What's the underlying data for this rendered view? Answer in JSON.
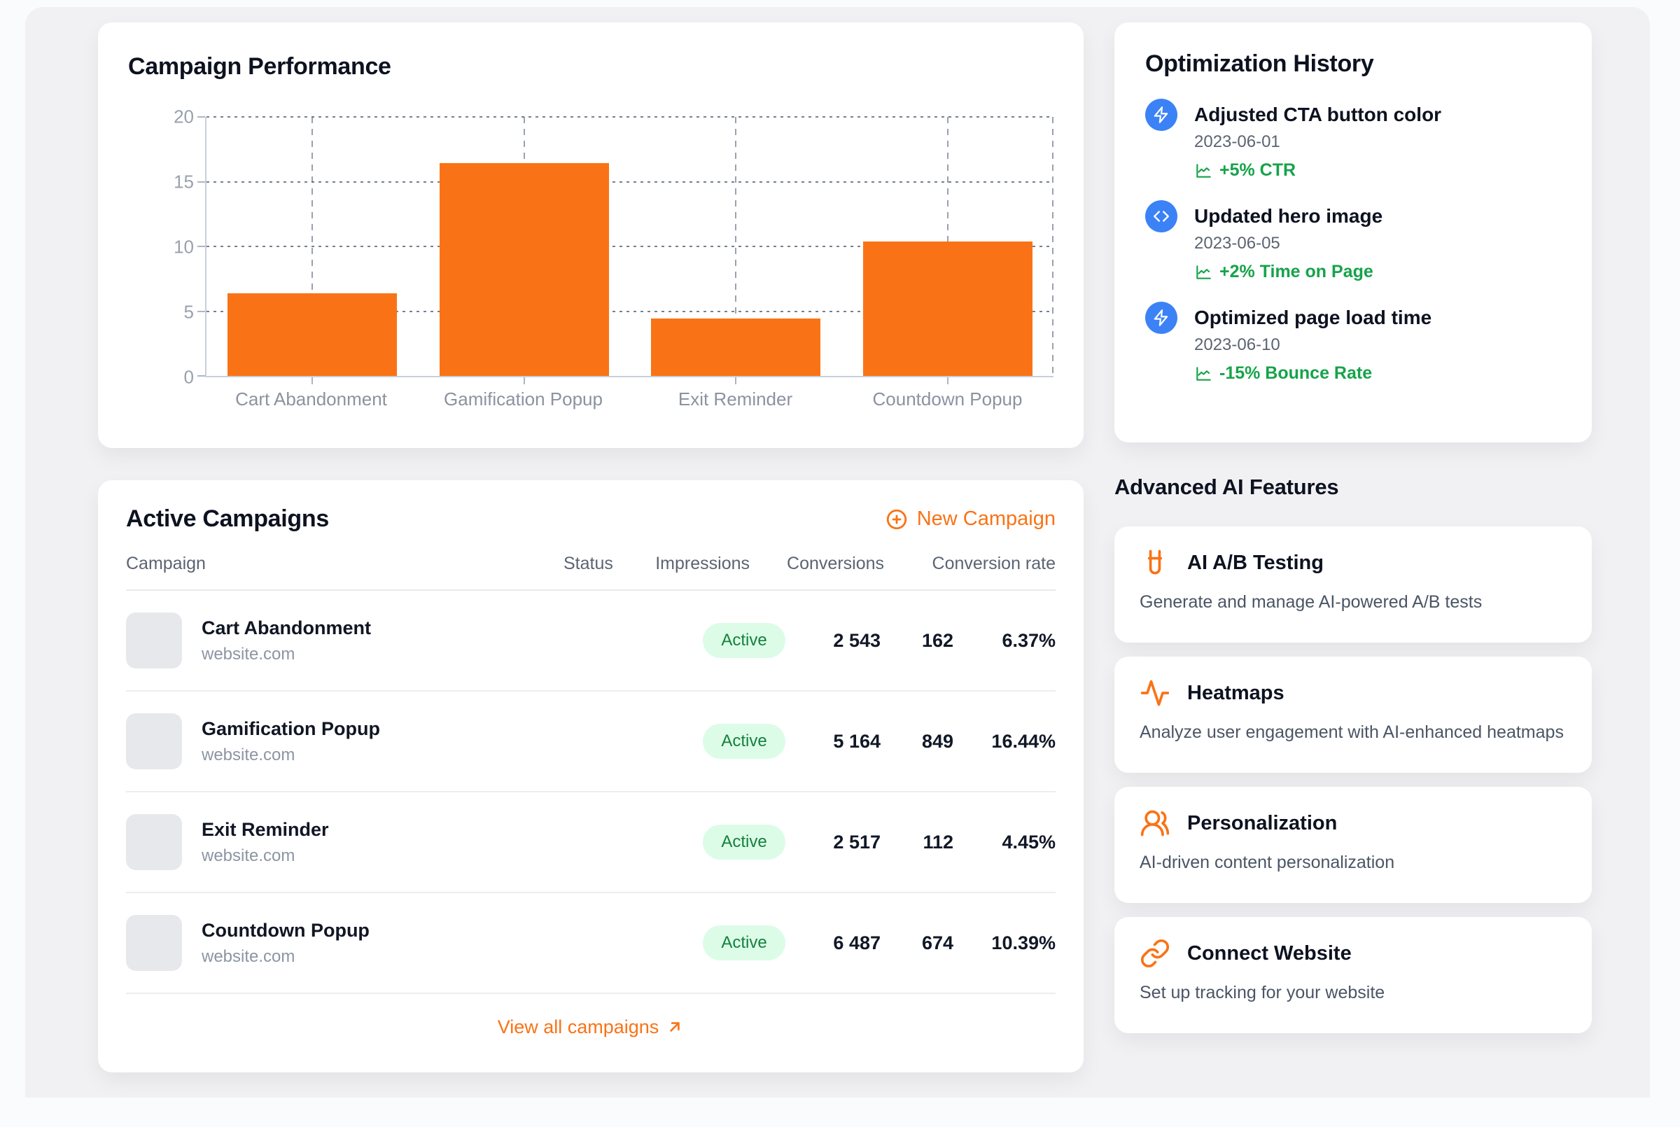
{
  "theme": {
    "accent_orange": "#F97316",
    "green_text": "#16A34A",
    "green_pill_bg": "#DCFCE7",
    "green_pill_text": "#15803D",
    "blue_icon_bg": "#3B82F6",
    "panel_bg": "#F1F1F4",
    "card_bg": "#FFFFFF"
  },
  "chart_card": {
    "title": "Campaign Performance"
  },
  "chart_data": {
    "type": "bar",
    "categories": [
      "Cart Abandonment",
      "Gamification Popup",
      "Exit Reminder",
      "Countdown Popup"
    ],
    "values": [
      6.37,
      16.44,
      4.45,
      10.39
    ],
    "title": "Campaign Performance",
    "xlabel": "",
    "ylabel": "",
    "ylim": [
      0,
      20
    ],
    "yticks": [
      0,
      5,
      10,
      15,
      20
    ],
    "grid": "dashed",
    "legend": "none",
    "bar_color": "#F97316"
  },
  "campaigns": {
    "title": "Active Campaigns",
    "new_button": "New Campaign",
    "headers": [
      "Campaign",
      "Status",
      "Impressions",
      "Conversions",
      "Conversion rate"
    ],
    "rows": [
      {
        "name": "Cart Abandonment",
        "domain": "website.com",
        "status": "Active",
        "impressions": "2 543",
        "conversions": "162",
        "rate": "6.37%"
      },
      {
        "name": "Gamification Popup",
        "domain": "website.com",
        "status": "Active",
        "impressions": "5 164",
        "conversions": "849",
        "rate": "16.44%"
      },
      {
        "name": "Exit Reminder",
        "domain": "website.com",
        "status": "Active",
        "impressions": "2 517",
        "conversions": "112",
        "rate": "4.45%"
      },
      {
        "name": "Countdown Popup",
        "domain": "website.com",
        "status": "Active",
        "impressions": "6 487",
        "conversions": "674",
        "rate": "10.39%"
      }
    ],
    "footer_link": "View all campaigns"
  },
  "history": {
    "title": "Optimization History",
    "items": [
      {
        "icon": "zap-icon",
        "title": "Adjusted CTA button color",
        "date": "2023-06-01",
        "metric": "+5% CTR"
      },
      {
        "icon": "code-icon",
        "title": "Updated hero image",
        "date": "2023-06-05",
        "metric": "+2% Time on Page"
      },
      {
        "icon": "zap-icon",
        "title": "Optimized page load time",
        "date": "2023-06-10",
        "metric": "-15% Bounce Rate"
      }
    ]
  },
  "ai": {
    "heading": "Advanced AI Features",
    "cards": [
      {
        "icon": "test-tube-icon",
        "title": "AI A/B Testing",
        "desc": "Generate and manage AI-powered A/B tests"
      },
      {
        "icon": "activity-icon",
        "title": "Heatmaps",
        "desc": "Analyze user engagement with AI-enhanced heatmaps"
      },
      {
        "icon": "users-icon",
        "title": "Personalization",
        "desc": "AI-driven content personalization"
      },
      {
        "icon": "link-icon",
        "title": "Connect Website",
        "desc": "Set up tracking for your website"
      }
    ]
  }
}
